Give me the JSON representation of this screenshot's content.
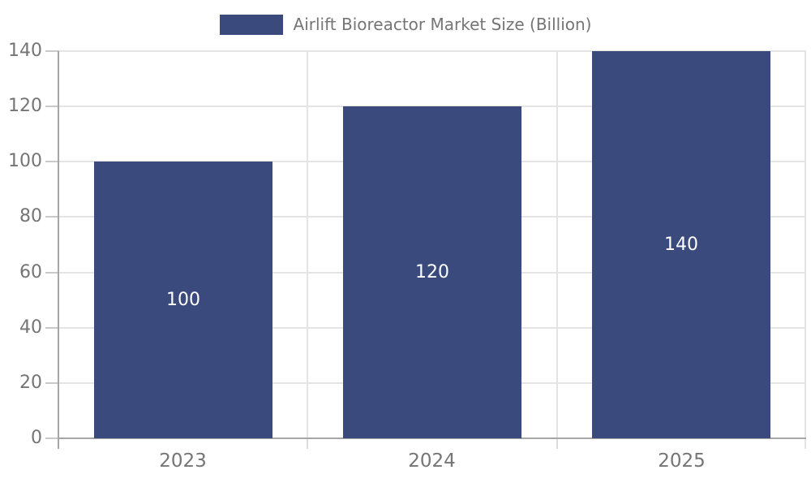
{
  "legend": {
    "label": "Airlift Bioreactor Market Size (Billion)"
  },
  "chart_data": {
    "type": "bar",
    "title": "",
    "xlabel": "",
    "ylabel": "",
    "categories": [
      "2023",
      "2024",
      "2025"
    ],
    "series": [
      {
        "name": "Airlift Bioreactor Market Size (Billion)",
        "values": [
          100,
          120,
          140
        ]
      }
    ],
    "bar_value_labels": [
      "100",
      "120",
      "140"
    ],
    "ylim": [
      0,
      140
    ],
    "yticks": [
      0,
      20,
      40,
      60,
      80,
      100,
      120,
      140
    ],
    "grid": true,
    "legend_position": "top"
  },
  "colors": {
    "bar": "#3A4A7D",
    "axis_text": "#757575",
    "bar_label_text": "#ffffff",
    "gridline": "#e4e4e4",
    "axis_line": "#a6a6a6",
    "tick_stub": "#c9c9c9",
    "boundary_tick": "#dcdcdc"
  }
}
